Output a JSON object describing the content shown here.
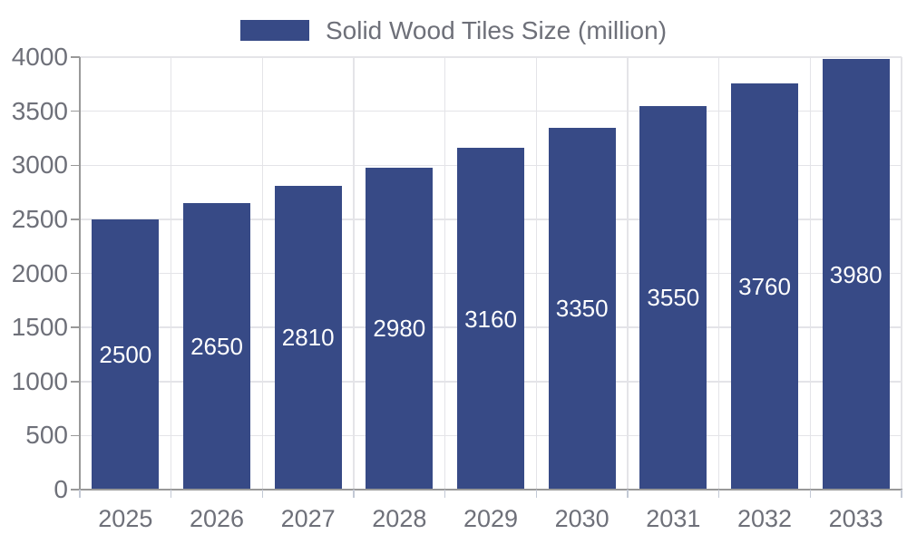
{
  "chart_data": {
    "type": "bar",
    "legend": "Solid Wood Tiles Size (million)",
    "categories": [
      "2025",
      "2026",
      "2027",
      "2028",
      "2029",
      "2030",
      "2031",
      "2032",
      "2033"
    ],
    "series": [
      {
        "name": "Solid Wood Tiles Size (million)",
        "values": [
          2500,
          2650,
          2810,
          2980,
          3160,
          3350,
          3550,
          3760,
          3980
        ]
      }
    ],
    "ylim": [
      0,
      4000
    ],
    "ytick_step": 500,
    "yticks": [
      0,
      500,
      1000,
      1500,
      2000,
      2500,
      3000,
      3500,
      4000
    ],
    "grid": true,
    "legend_position": "top",
    "value_labels": "inside-center",
    "colors": {
      "bar": "#374A86",
      "bar_label": "#FFFFFF",
      "axis_text": "#6E7079",
      "legend_text": "#6E7079",
      "grid": "#E4E4E8",
      "axis_line": "#999999",
      "x_tick": "#C3C9D5",
      "background": "#FFFFFF"
    }
  }
}
